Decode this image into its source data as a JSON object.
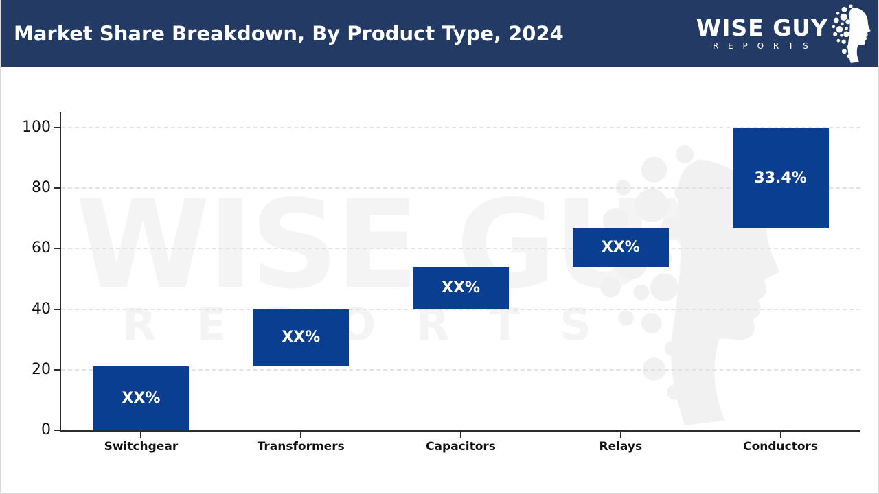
{
  "header": {
    "title": "Market Share Breakdown, By Product Type, 2024",
    "logo": {
      "line1": "WISE GUY",
      "line2": "R E P O R T S"
    }
  },
  "watermark": {
    "line1": "WISE GUY",
    "line2": "R E P O R T S"
  },
  "chart_data": {
    "type": "bar",
    "subtype": "waterfall",
    "title": "Market Share Breakdown, By Product Type, 2024",
    "categories": [
      "Switchgear",
      "Transformers",
      "Capacitors",
      "Relays",
      "Conductors"
    ],
    "segments": [
      {
        "category": "Switchgear",
        "start": 0,
        "end": 21,
        "value": 21,
        "label": "XX%"
      },
      {
        "category": "Transformers",
        "start": 21,
        "end": 40,
        "value": 19,
        "label": "XX%"
      },
      {
        "category": "Capacitors",
        "start": 40,
        "end": 54,
        "value": 14,
        "label": "XX%"
      },
      {
        "category": "Relays",
        "start": 54,
        "end": 66.6,
        "value": 12.6,
        "label": "XX%"
      },
      {
        "category": "Conductors",
        "start": 66.6,
        "end": 100,
        "value": 33.4,
        "label": "33.4%"
      }
    ],
    "xlabel": "",
    "ylabel": "",
    "ylim": [
      0,
      100
    ],
    "y_ticks": [
      0,
      20,
      40,
      60,
      80,
      100
    ],
    "grid": "dashed-horizontal",
    "legend": "none",
    "bar_color": "#0a3e90",
    "bar_label_color": "#ffffff"
  },
  "colors": {
    "header_bg": "#223a64",
    "header_text": "#ffffff",
    "bar": "#0a3e90",
    "grid": "#e2e2e2",
    "axis": "#2b2b2b",
    "watermark": "#f4f4f4",
    "frame_border": "#d9d9d9"
  }
}
